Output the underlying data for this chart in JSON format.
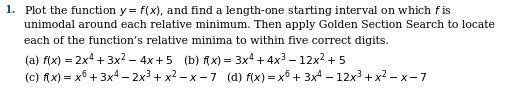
{
  "number_color": "#1f4e9c",
  "text_color": "#000000",
  "bg_color": "#ffffff",
  "font_size": 7.8,
  "indent": "    ",
  "line1_pre": "Plot the function ",
  "line1_math": "y = f\\,(x)",
  "line1_post": ", and find a length-one starting interval on which ",
  "line1_f": "f",
  "line1_end": " is",
  "line2": "unimodal around each relative minimum. Then apply Golden Section Search to locate",
  "line3": "each of the function’s relative minima to within five correct digits.",
  "line4": "(a) f(x) = 2x^4 + 3x^2 - 4x + 5   (b) f(x) = 3x^4 + 4x^3 - 12x^2 + 5",
  "line5": "(c) f(x) = x^6 + 3x^4 - 2x^3 + x^2 - x - 7   (d) f(x) = x^6 + 3x^4 - 12x^3 + x^2 - x - 7"
}
